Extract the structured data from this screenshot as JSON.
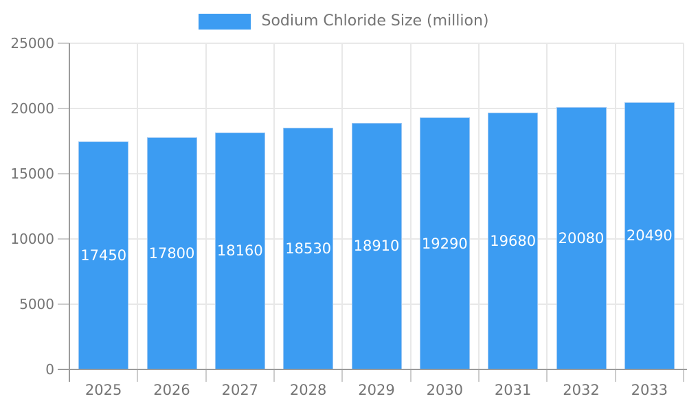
{
  "chart_data": {
    "type": "bar",
    "legend_label": "Sodium Chloride Size (million)",
    "legend_position": "top",
    "categories": [
      "2025",
      "2026",
      "2027",
      "2028",
      "2029",
      "2030",
      "2031",
      "2032",
      "2033"
    ],
    "values": [
      17450,
      17800,
      18160,
      18530,
      18910,
      19290,
      19680,
      20080,
      20490
    ],
    "value_labels": [
      "17450",
      "17800",
      "18160",
      "18530",
      "18910",
      "19290",
      "19680",
      "20080",
      "20490"
    ],
    "ylim": [
      0,
      25000
    ],
    "ytick_step": 5000,
    "y_tick_labels": [
      "0",
      "5000",
      "10000",
      "15000",
      "20000",
      "25000"
    ],
    "grid": true,
    "colors": {
      "bar_fill": "#3c9cf2",
      "bar_border": "#9cc7f3",
      "value_label_text": "#ffffff",
      "axis_label_text": "#757575",
      "legend_text": "#747474",
      "gridline": "#e8e8e8",
      "tick": "#cccccc",
      "axis_line": "#9c9c9c",
      "background": "#ffffff"
    }
  }
}
